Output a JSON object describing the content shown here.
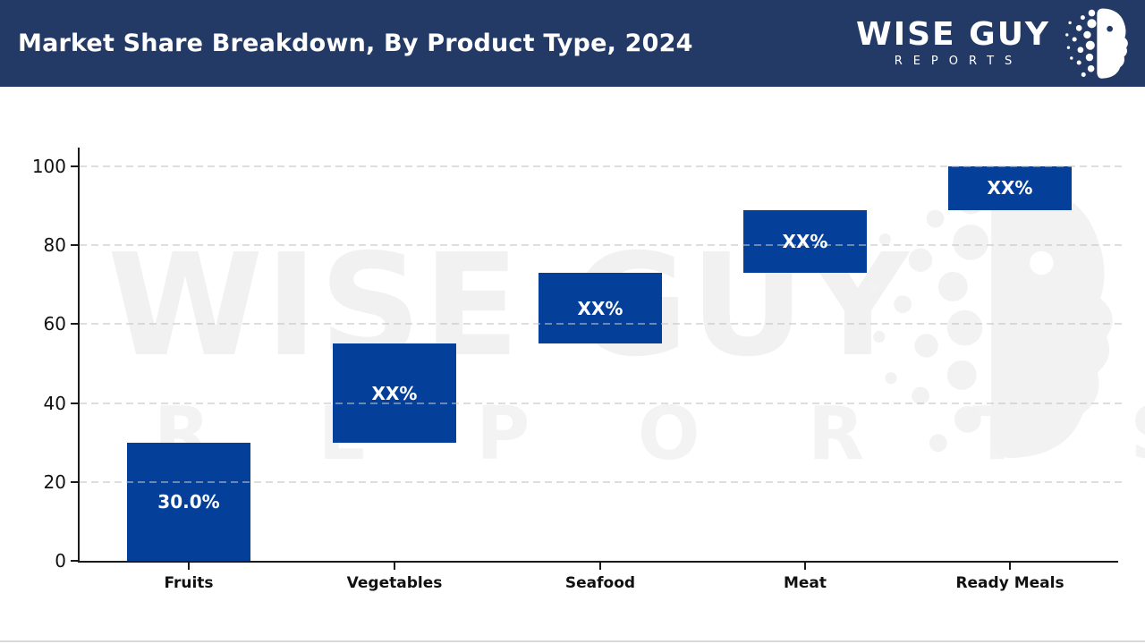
{
  "header": {
    "title": "Market Share Breakdown, By Product Type, 2024",
    "bg_color": "#233a66",
    "text_color": "#ffffff",
    "logo": {
      "line1": "WISE GUY",
      "line2": "REPORTS"
    }
  },
  "watermark": {
    "line1": "WISE GUY",
    "line2": "R E P O R T S"
  },
  "chart_data": {
    "type": "bar",
    "subtype": "waterfall",
    "title": "Market Share Breakdown, By Product Type, 2024",
    "categories": [
      "Fruits",
      "Vegetables",
      "Seafood",
      "Meat",
      "Ready Meals"
    ],
    "segments": [
      {
        "category": "Fruits",
        "start": 0,
        "end": 30,
        "value": 30,
        "label": "30.0%"
      },
      {
        "category": "Vegetables",
        "start": 30,
        "end": 55,
        "value": 25,
        "label": "XX%"
      },
      {
        "category": "Seafood",
        "start": 55,
        "end": 73,
        "value": 18,
        "label": "XX%"
      },
      {
        "category": "Meat",
        "start": 73,
        "end": 89,
        "value": 16,
        "label": "XX%"
      },
      {
        "category": "Ready Meals",
        "start": 89,
        "end": 100,
        "value": 11,
        "label": "XX%"
      }
    ],
    "yticks": [
      0,
      20,
      40,
      60,
      80,
      100
    ],
    "ylim": [
      0,
      105
    ],
    "xlabel": "",
    "ylabel": "",
    "grid": "horizontal-dashed",
    "legend": "none",
    "bar_color": "#04409a",
    "bar_label_color": "#ffffff",
    "axis_color": "#1a1a1a"
  }
}
